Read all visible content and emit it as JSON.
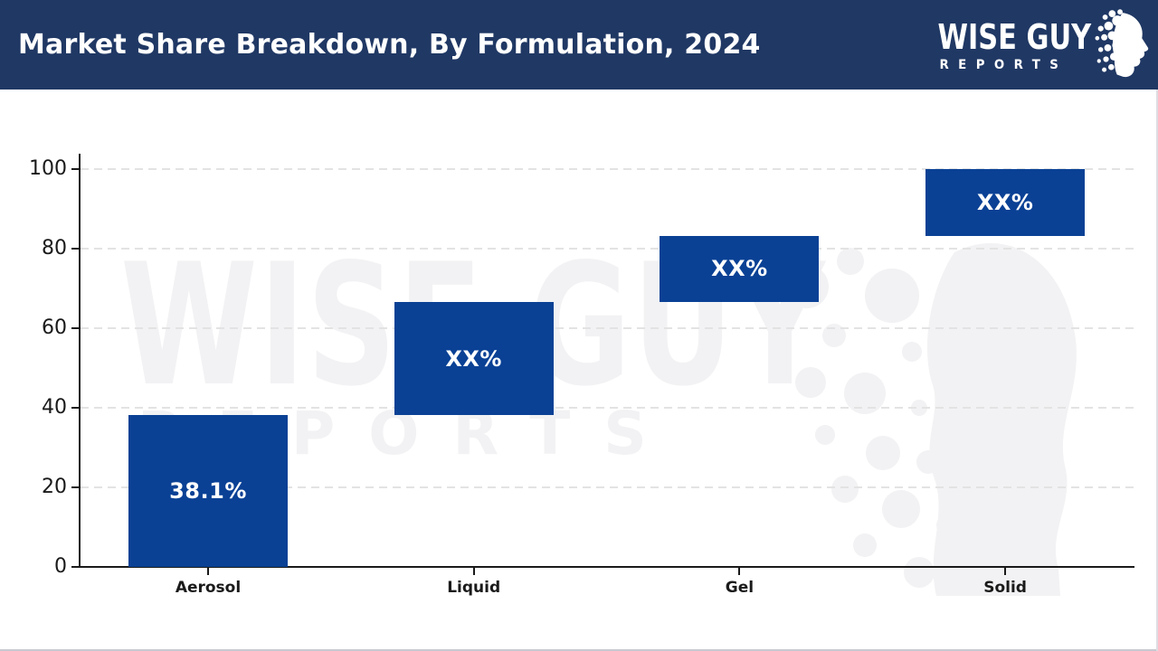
{
  "header": {
    "title": "Market Share Breakdown, By Formulation, 2024",
    "logo": {
      "wordmark": "WISE GUY",
      "subtitle": "REPORTS"
    }
  },
  "watermark": {
    "wordmark": "WISE GUY",
    "subtitle": "REPORTS"
  },
  "chart_data": {
    "type": "bar",
    "variant": "waterfall",
    "title": "Market Share Breakdown, By Formulation, 2024",
    "categories": [
      "Aerosol",
      "Liquid",
      "Gel",
      "Solid"
    ],
    "segments": [
      {
        "category": "Aerosol",
        "start": 0,
        "end": 38.1,
        "label": "38.1%"
      },
      {
        "category": "Liquid",
        "start": 38.1,
        "end": 66.6,
        "label": "XX%"
      },
      {
        "category": "Gel",
        "start": 66.6,
        "end": 83.2,
        "label": "XX%"
      },
      {
        "category": "Solid",
        "start": 83.2,
        "end": 100,
        "label": "XX%"
      }
    ],
    "yticks": [
      0,
      20,
      40,
      60,
      80,
      100
    ],
    "ylim": [
      0,
      104
    ],
    "xlabel": "",
    "ylabel": "",
    "grid": {
      "axis": "y",
      "style": "dashed"
    },
    "legend": false,
    "bar_color": "#0a4195",
    "bar_label_color": "#ffffff"
  },
  "colors": {
    "header_bg": "#203864",
    "header_text": "#ffffff",
    "bar": "#0a4195",
    "axis": "#1a1a1a",
    "gridline": "#e3e3e3",
    "watermark": "#f2f2f4",
    "background": "#ffffff"
  }
}
